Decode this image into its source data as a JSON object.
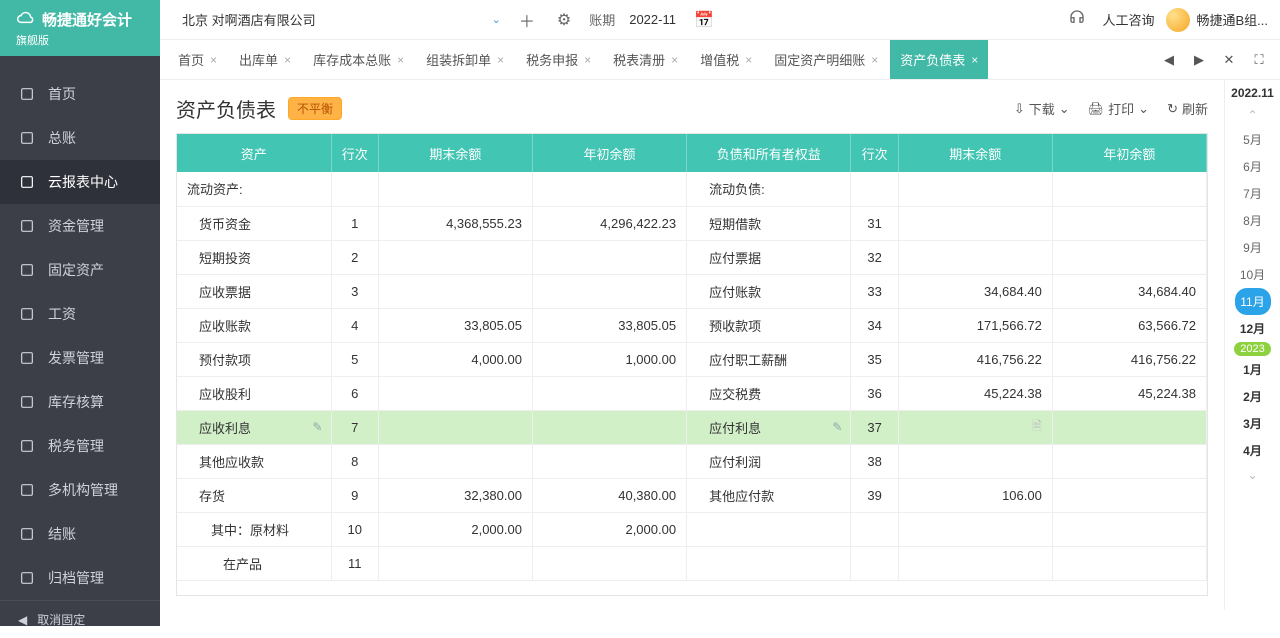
{
  "brand": {
    "name": "畅捷通好会计",
    "edition": "旗舰版"
  },
  "company": "北京 对啊酒店有限公司",
  "period_label": "账期",
  "period_value": "2022-11",
  "topbar_right": {
    "consult": "人工咨询",
    "user": "畅捷通B组..."
  },
  "sidebar": [
    {
      "label": "首页",
      "icon": "home"
    },
    {
      "label": "总账",
      "icon": "ledger"
    },
    {
      "label": "云报表中心",
      "icon": "report",
      "active": true
    },
    {
      "label": "资金管理",
      "icon": "fund"
    },
    {
      "label": "固定资产",
      "icon": "asset"
    },
    {
      "label": "工资",
      "icon": "salary"
    },
    {
      "label": "发票管理",
      "icon": "invoice"
    },
    {
      "label": "库存核算",
      "icon": "stock"
    },
    {
      "label": "税务管理",
      "icon": "tax"
    },
    {
      "label": "多机构管理",
      "icon": "org"
    },
    {
      "label": "结账",
      "icon": "close"
    },
    {
      "label": "归档管理",
      "icon": "archive"
    }
  ],
  "sidebar_footer": "取消固定",
  "tabs": [
    "首页",
    "出库单",
    "库存成本总账",
    "组装拆卸单",
    "税务申报",
    "税表清册",
    "增值税",
    "固定资产明细账",
    "资产负债表"
  ],
  "active_tab": 8,
  "page": {
    "title": "资产负债表",
    "badge": "不平衡",
    "actions": {
      "download": "下载",
      "print": "打印",
      "refresh": "刷新"
    }
  },
  "columns": [
    "资产",
    "行次",
    "期末余额",
    "年初余额",
    "负债和所有者权益",
    "行次",
    "期末余额",
    "年初余额"
  ],
  "rows": [
    {
      "a": "流动资产:",
      "cls": "section",
      "l": "流动负债:"
    },
    {
      "a": "货币资金",
      "rn": "1",
      "pe": "4,368,555.23",
      "py": "4,296,422.23",
      "l": "短期借款",
      "lrn": "31"
    },
    {
      "a": "短期投资",
      "rn": "2",
      "l": "应付票据",
      "lrn": "32"
    },
    {
      "a": "应收票据",
      "rn": "3",
      "l": "应付账款",
      "lrn": "33",
      "lpe": "34,684.40",
      "lpy": "34,684.40"
    },
    {
      "a": "应收账款",
      "rn": "4",
      "pe": "33,805.05",
      "py": "33,805.05",
      "l": "预收款项",
      "lrn": "34",
      "lpe": "171,566.72",
      "lpy": "63,566.72"
    },
    {
      "a": "预付款项",
      "rn": "5",
      "pe": "4,000.00",
      "py": "1,000.00",
      "l": "应付职工薪酬",
      "lrn": "35",
      "lpe": "416,756.22",
      "lpy": "416,756.22"
    },
    {
      "a": "应收股利",
      "rn": "6",
      "l": "应交税费",
      "lrn": "36",
      "lpe": "45,224.38",
      "lpy": "45,224.38"
    },
    {
      "a": "应收利息",
      "rn": "7",
      "edit": true,
      "l": "应付利息",
      "lrn": "37",
      "ledit": true,
      "doc": true,
      "hl": true
    },
    {
      "a": "其他应收款",
      "rn": "8",
      "l": "应付利润",
      "lrn": "38"
    },
    {
      "a": "存货",
      "rn": "9",
      "pe": "32,380.00",
      "py": "40,380.00",
      "l": "其他应付款",
      "lrn": "39",
      "lpe": "106.00"
    },
    {
      "a": "其中：原材料",
      "cls": "sub1",
      "rn": "10",
      "pe": "2,000.00",
      "py": "2,000.00"
    },
    {
      "a": "在产品",
      "cls": "sub2",
      "rn": "11"
    }
  ],
  "monthbar": {
    "year": "2022.11",
    "top": [
      "5月",
      "6月",
      "7月",
      "8月",
      "9月",
      "10月"
    ],
    "active": "11月",
    "after_active": "12月",
    "pill": "2023",
    "bottom": [
      "1月",
      "2月",
      "3月",
      "4月"
    ]
  }
}
